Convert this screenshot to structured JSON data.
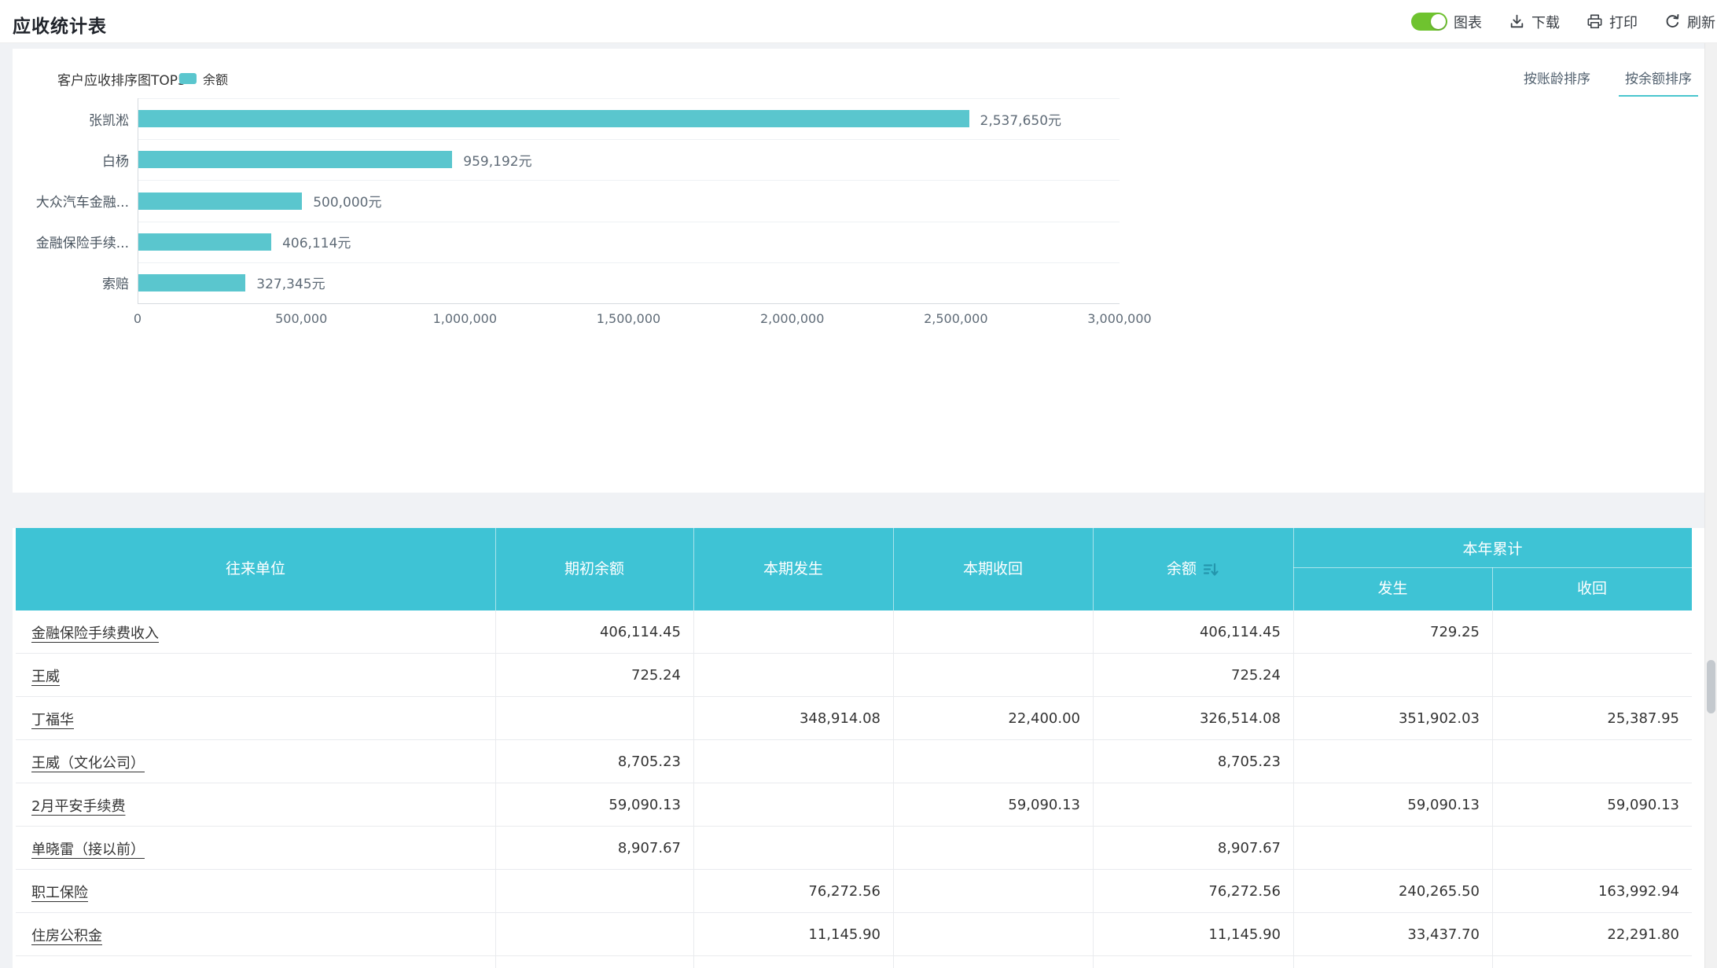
{
  "header": {
    "title": "应收统计表",
    "toolbar": {
      "chart_toggle_label": "图表",
      "chart_toggle_on": true,
      "download_label": "下载",
      "print_label": "打印",
      "refresh_label": "刷新"
    }
  },
  "chart_panel": {
    "title": "客户应收排序图TOP5",
    "legend_label": "余额",
    "sort_links": [
      {
        "label": "按账龄排序",
        "active": false
      },
      {
        "label": "按余额排序",
        "active": true
      }
    ]
  },
  "chart_data": {
    "type": "bar",
    "orientation": "horizontal",
    "title": "客户应收排序图TOP5",
    "legend": [
      "余额"
    ],
    "legend_position": "top",
    "categories": [
      "张凯淞",
      "白杨",
      "大众汽车金融...",
      "金融保险手续...",
      "索赔"
    ],
    "values": [
      2537650,
      959192,
      500000,
      406114,
      327345
    ],
    "value_labels": [
      "2,537,650元",
      "959,192元",
      "500,000元",
      "406,114元",
      "327,345元"
    ],
    "xlim": [
      0,
      3000000
    ],
    "x_ticks": [
      0,
      500000,
      1000000,
      1500000,
      2000000,
      2500000,
      3000000
    ],
    "x_tick_labels": [
      "0",
      "500,000",
      "1,000,000",
      "1,500,000",
      "2,000,000",
      "2,500,000",
      "3,000,000"
    ],
    "bar_color": "#5ac6ce",
    "grid": true
  },
  "table": {
    "columns": [
      "往来单位",
      "期初余额",
      "本期发生",
      "本期收回",
      "余额",
      "发生",
      "收回"
    ],
    "group_header": "本年累计",
    "sorted_column": "余额",
    "sort_direction": "desc",
    "rows": [
      {
        "name": "金融保险手续费收入",
        "opening": "406,114.45",
        "occurred": "",
        "recovered": "",
        "balance": "406,114.45",
        "ytd_occurred": "729.25",
        "ytd_recovered": ""
      },
      {
        "name": "王威",
        "opening": "725.24",
        "occurred": "",
        "recovered": "",
        "balance": "725.24",
        "ytd_occurred": "",
        "ytd_recovered": ""
      },
      {
        "name": "丁福华",
        "opening": "",
        "occurred": "348,914.08",
        "recovered": "22,400.00",
        "balance": "326,514.08",
        "ytd_occurred": "351,902.03",
        "ytd_recovered": "25,387.95"
      },
      {
        "name": "王威（文化公司）",
        "opening": "8,705.23",
        "occurred": "",
        "recovered": "",
        "balance": "8,705.23",
        "ytd_occurred": "",
        "ytd_recovered": ""
      },
      {
        "name": "2月平安手续费",
        "opening": "59,090.13",
        "occurred": "",
        "recovered": "59,090.13",
        "balance": "",
        "ytd_occurred": "59,090.13",
        "ytd_recovered": "59,090.13"
      },
      {
        "name": "单晓雷（接以前）",
        "opening": "8,907.67",
        "occurred": "",
        "recovered": "",
        "balance": "8,907.67",
        "ytd_occurred": "",
        "ytd_recovered": ""
      },
      {
        "name": "职工保险",
        "opening": "",
        "occurred": "76,272.56",
        "recovered": "",
        "balance": "76,272.56",
        "ytd_occurred": "240,265.50",
        "ytd_recovered": "163,992.94"
      },
      {
        "name": "住房公积金",
        "opening": "",
        "occurred": "11,145.90",
        "recovered": "",
        "balance": "11,145.90",
        "ytd_occurred": "33,437.70",
        "ytd_recovered": "22,291.80"
      }
    ]
  },
  "colors": {
    "bar_teal": "#5ac6ce",
    "table_header_teal": "#3ec3d5",
    "toggle_green": "#6fc32f",
    "active_link_underline": "#4ac6ce",
    "page_background": "#f0f2f5"
  }
}
